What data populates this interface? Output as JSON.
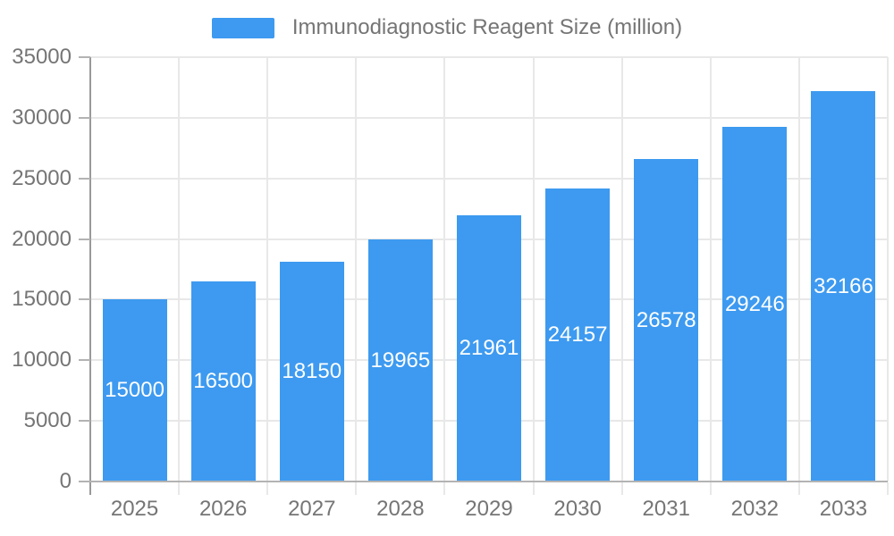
{
  "legend": {
    "label": "Immunodiagnostic Reagent Size (million)"
  },
  "colors": {
    "bar": "#3D9AF0",
    "grid": "#e8e8e8",
    "x_axis_line": "#b3b3b3",
    "y_axis_line": "#999999",
    "tick_text": "#757575",
    "bar_label_text": "#ffffff",
    "background": "#ffffff"
  },
  "chart_data": {
    "type": "bar",
    "title": "Immunodiagnostic Reagent Size (million)",
    "categories": [
      "2025",
      "2026",
      "2027",
      "2028",
      "2029",
      "2030",
      "2031",
      "2032",
      "2033"
    ],
    "series": [
      {
        "name": "Immunodiagnostic Reagent Size (million)",
        "values": [
          15000,
          16500,
          18150,
          19965,
          21961,
          24157,
          26578,
          29246,
          32166
        ]
      }
    ],
    "xlabel": "",
    "ylabel": "",
    "ylim": [
      0,
      35000
    ],
    "yticks": [
      0,
      5000,
      10000,
      15000,
      20000,
      25000,
      30000,
      35000
    ],
    "grid": true,
    "legend_position": "top-center",
    "bar_label_position": "inside-center"
  }
}
